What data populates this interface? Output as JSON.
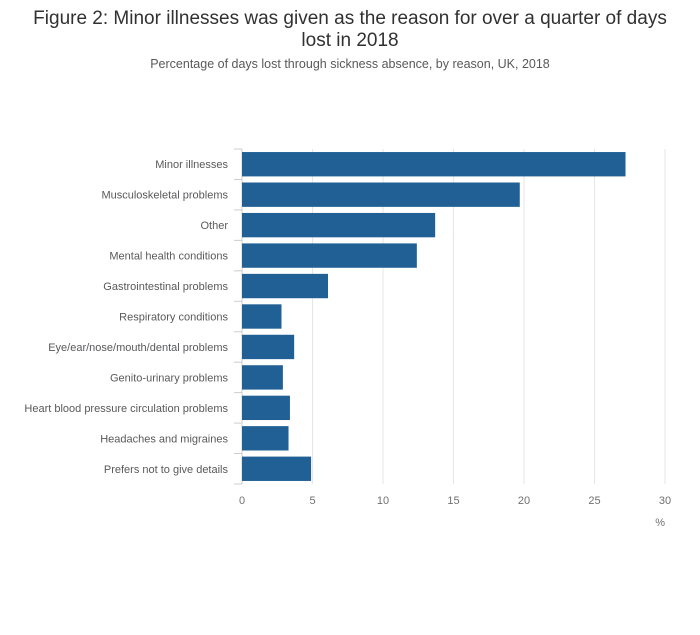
{
  "title": "Figure 2: Minor illnesses was given as the reason for over a quarter of days lost in 2018",
  "subtitle": "Percentage of days lost through sickness absence, by reason, UK, 2018",
  "colors": {
    "bar": "#206095",
    "grid": "#e6e6e6",
    "axis_text": "#707071",
    "label_text": "#58595b"
  },
  "chart_data": {
    "type": "bar",
    "orientation": "horizontal",
    "title": "Figure 2: Minor illnesses was given as the reason for over a quarter of days lost in 2018",
    "subtitle": "Percentage of days lost through sickness absence, by reason, UK, 2018",
    "xlabel": "%",
    "ylabel": "",
    "xlim": [
      0,
      30
    ],
    "x_ticks": [
      "0",
      "5",
      "10",
      "15",
      "20",
      "25",
      "30"
    ],
    "grid": true,
    "categories": [
      "Minor illnesses",
      "Musculoskeletal problems",
      "Other",
      "Mental health conditions",
      "Gastrointestinal problems",
      "Respiratory conditions",
      "Eye/ear/nose/mouth/dental problems",
      "Genito-urinary problems",
      "Heart blood pressure circulation problems",
      "Headaches and migraines",
      "Prefers not to give details"
    ],
    "values": [
      27.2,
      19.7,
      13.7,
      12.4,
      6.1,
      2.8,
      3.7,
      2.9,
      3.4,
      3.3,
      4.9
    ]
  }
}
